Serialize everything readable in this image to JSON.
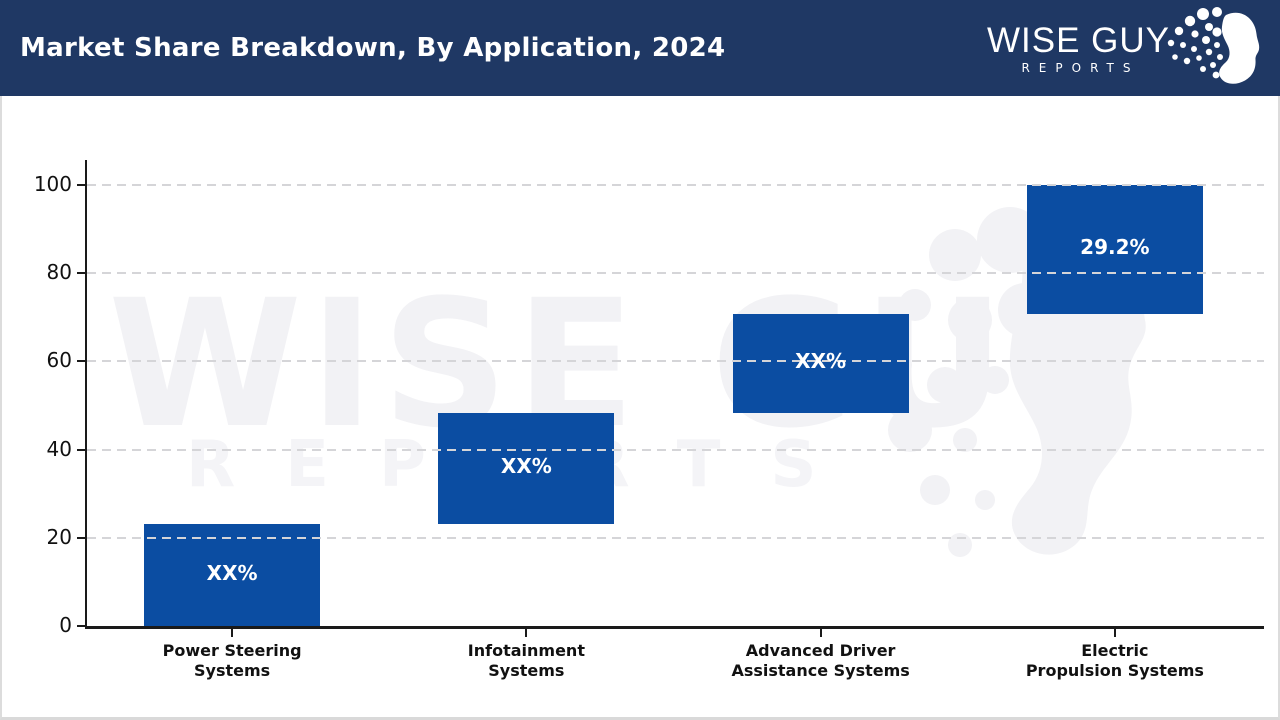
{
  "header": {
    "title": "Market Share Breakdown, By Application, 2024",
    "logo": {
      "name": "WISE GUY",
      "tagline": "REPORTS"
    }
  },
  "watermark": {
    "line1": "WISE GUY",
    "line2": "REPORTS"
  },
  "colors": {
    "header_bg": "#1f3864",
    "bar": "#0b4da2",
    "gridline": "#d5d5d8",
    "axis": "#1a1a1a",
    "watermark": "#f2f2f5"
  },
  "chart_data": {
    "type": "bar",
    "subtype": "waterfall-segment",
    "title": "Market Share Breakdown, By Application, 2024",
    "xlabel": "",
    "ylabel": "",
    "ylim": [
      0,
      105
    ],
    "yticks": [
      0,
      20,
      40,
      60,
      80,
      100
    ],
    "grid": "horizontal-dashed-over-bars",
    "legend": "none",
    "categories": [
      "Power Steering\nSystems",
      "Infotainment\nSystems",
      "Advanced Driver\nAssistance Systems",
      "Electric\nPropulsion Systems"
    ],
    "segments": [
      {
        "category": "Power Steering Systems",
        "start": 0,
        "end": 23.1,
        "value": 23.1,
        "value_label": "XX%"
      },
      {
        "category": "Infotainment Systems",
        "start": 23.1,
        "end": 48.4,
        "value": 25.3,
        "value_label": "XX%"
      },
      {
        "category": "Advanced Driver Assistance Systems",
        "start": 48.4,
        "end": 70.8,
        "value": 22.4,
        "value_label": "XX%"
      },
      {
        "category": "Electric Propulsion Systems",
        "start": 70.8,
        "end": 100.0,
        "value": 29.2,
        "value_label": "29.2%"
      }
    ]
  }
}
